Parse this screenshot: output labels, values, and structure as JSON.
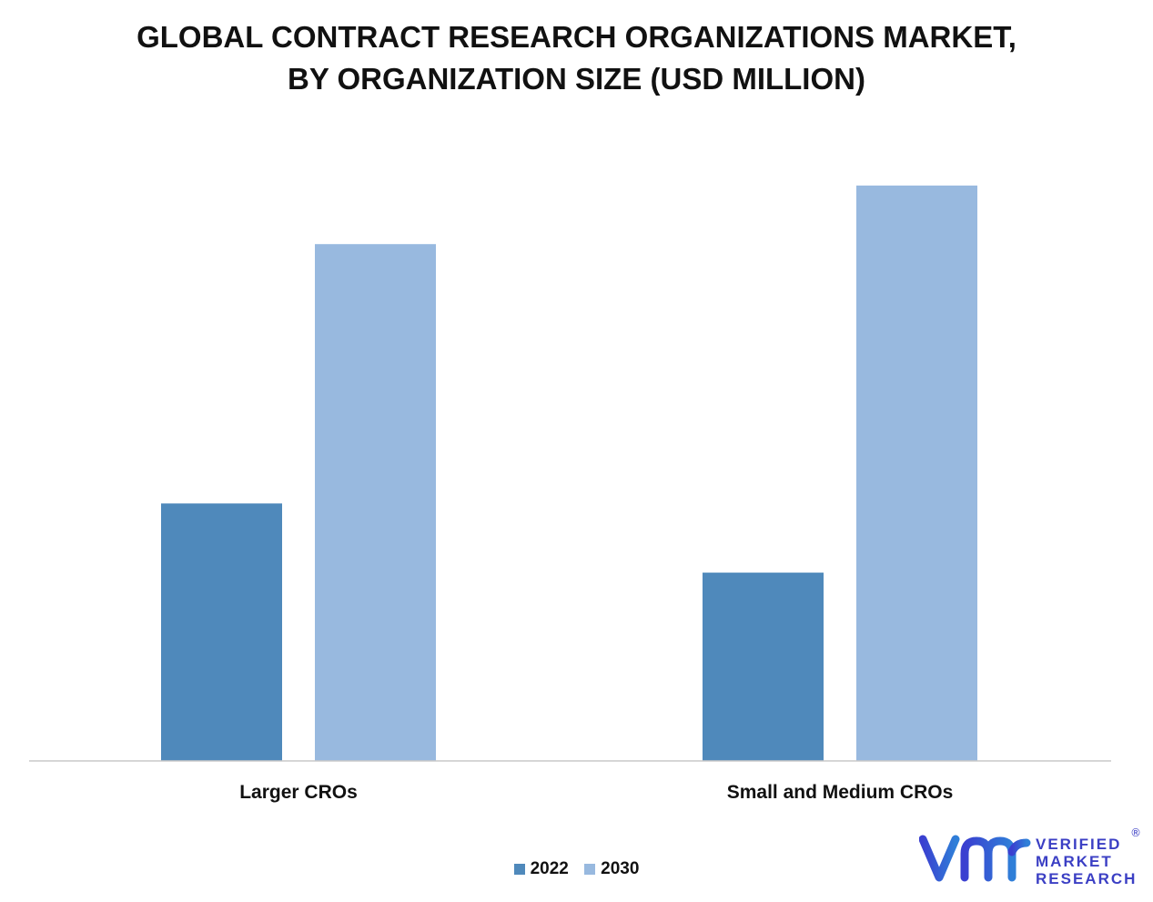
{
  "title": {
    "line1": "GLOBAL CONTRACT RESEARCH ORGANIZATIONS MARKET,",
    "line2": "BY ORGANIZATION SIZE (USD MILLION)"
  },
  "chart_data": {
    "type": "bar",
    "categories": [
      "Larger CROs",
      "Small and Medium CROs"
    ],
    "series": [
      {
        "name": "2022",
        "color": "#4f89bb",
        "values": [
          268,
          196
        ]
      },
      {
        "name": "2030",
        "color": "#98b9df",
        "values": [
          538,
          599
        ]
      }
    ],
    "ylim": [
      0,
      650
    ],
    "grid": false,
    "legend_position": "bottom-center"
  },
  "legend": {
    "items": [
      {
        "label": "2022",
        "color": "#4f89bb"
      },
      {
        "label": "2030",
        "color": "#98b9df"
      }
    ]
  },
  "logo": {
    "line1": "VERIFIED",
    "line2": "MARKET",
    "line3": "RESEARCH",
    "reg": "®",
    "color": "#3b3fc4"
  }
}
